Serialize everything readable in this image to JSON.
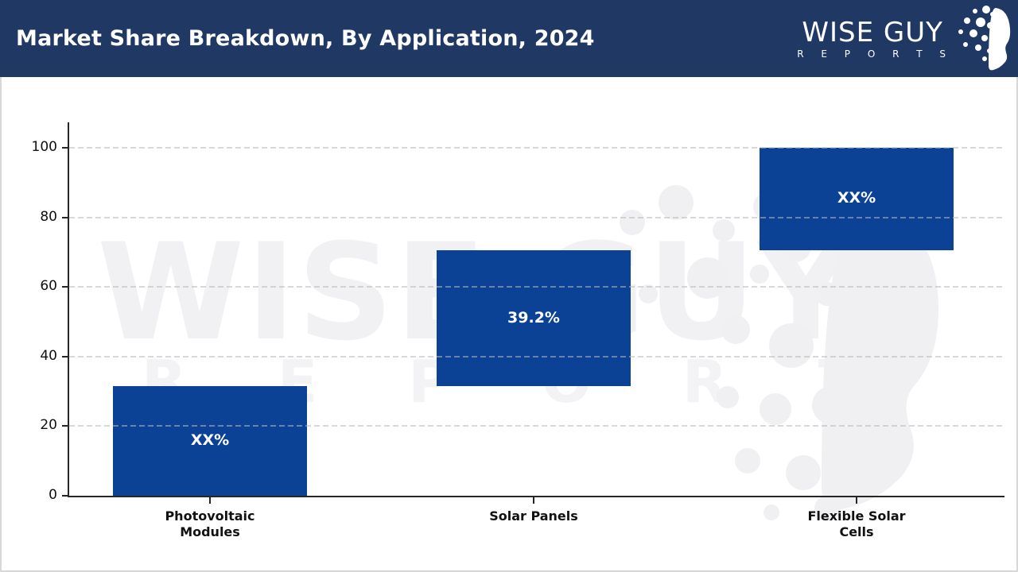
{
  "header": {
    "title": "Market Share Breakdown, By Application, 2024",
    "bg_color": "#1f3864",
    "logo": {
      "name": "WISE GUY",
      "sub": "R E P O R T S",
      "face_icon": "dotted-face-profile"
    }
  },
  "watermark": {
    "name": "WISE GUY",
    "sub": "R E P O R T S",
    "face_icon": "dotted-face-profile"
  },
  "chart_data": {
    "type": "bar",
    "subtype": "floating-segment-bars",
    "title": "Market Share Breakdown, By Application, 2024",
    "categories": [
      "Photovoltaic Modules",
      "Solar Panels",
      "Flexible Solar Cells"
    ],
    "category_lines": [
      [
        "Photovoltaic",
        "Modules"
      ],
      [
        "Solar Panels"
      ],
      [
        "Flexible Solar",
        "Cells"
      ]
    ],
    "segments": [
      {
        "category": "Photovoltaic Modules",
        "from": 0,
        "to": 31.4,
        "label": "XX%"
      },
      {
        "category": "Solar Panels",
        "from": 31.4,
        "to": 70.6,
        "label": "39.2%"
      },
      {
        "category": "Flexible Solar Cells",
        "from": 70.6,
        "to": 100,
        "label": "XX%"
      }
    ],
    "yticks": [
      0,
      20,
      40,
      60,
      80,
      100
    ],
    "ylim": [
      0,
      107
    ],
    "xlabel": "",
    "ylabel": "",
    "legend": null,
    "grid": "horizontal-dashed",
    "bar_color": "#0b4296",
    "bar_label_color": "#ffffff"
  }
}
